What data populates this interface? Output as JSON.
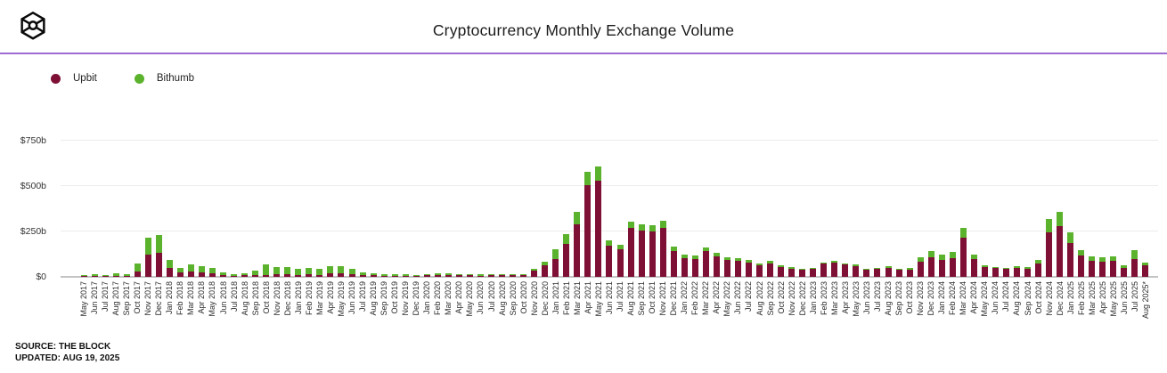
{
  "header": {
    "title": "Cryptocurrency Monthly Exchange Volume",
    "accent_line_color": "#9e6bd0",
    "logo": "the-block-cube-logo"
  },
  "legend": {
    "items": [
      {
        "label": "Upbit",
        "color": "#7e0f35"
      },
      {
        "label": "Bithumb",
        "color": "#5bb22d"
      }
    ]
  },
  "footer": {
    "source": "SOURCE: THE BLOCK",
    "updated": "UPDATED: AUG 19, 2025"
  },
  "chart_data": {
    "type": "bar",
    "stacked": true,
    "title": "Cryptocurrency Monthly Exchange Volume",
    "unit": "USD billions",
    "grid": "horizontal",
    "legend_position": "top-left",
    "ylim": [
      0,
      838
    ],
    "y_ticks": [
      {
        "label": "$0",
        "value": 0
      },
      {
        "label": "$250b",
        "value": 250
      },
      {
        "label": "$500b",
        "value": 500
      },
      {
        "label": "$750b",
        "value": 750
      }
    ],
    "categories": [
      "May 2017",
      "Jun 2017",
      "Jul 2017",
      "Aug 2017",
      "Sep 2017",
      "Oct 2017",
      "Nov 2017",
      "Dec 2017",
      "Jan 2018",
      "Feb 2018",
      "Mar 2018",
      "Apr 2018",
      "May 2018",
      "Jun 2018",
      "Jul 2018",
      "Aug 2018",
      "Sep 2018",
      "Oct 2018",
      "Nov 2018",
      "Dec 2018",
      "Jan 2019",
      "Feb 2019",
      "Mar 2019",
      "Apr 2019",
      "May 2019",
      "Jun 2019",
      "Jul 2019",
      "Aug 2019",
      "Sep 2019",
      "Oct 2019",
      "Nov 2019",
      "Dec 2019",
      "Jan 2020",
      "Feb 2020",
      "Mar 2020",
      "Apr 2020",
      "May 2020",
      "Jun 2020",
      "Jul 2020",
      "Aug 2020",
      "Sep 2020",
      "Oct 2020",
      "Nov 2020",
      "Dec 2020",
      "Jan 2021",
      "Feb 2021",
      "Mar 2021",
      "Apr 2021",
      "May 2021",
      "Jun 2021",
      "Jul 2021",
      "Aug 2021",
      "Sep 2021",
      "Oct 2021",
      "Nov 2021",
      "Dec 2021",
      "Jan 2022",
      "Feb 2022",
      "Mar 2022",
      "Apr 2022",
      "May 2022",
      "Jun 2022",
      "Jul 2022",
      "Aug 2022",
      "Sep 2022",
      "Oct 2022",
      "Nov 2022",
      "Dec 2022",
      "Jan 2023",
      "Feb 2023",
      "Mar 2023",
      "Apr 2023",
      "May 2023",
      "Jun 2023",
      "Jul 2023",
      "Aug 2023",
      "Sep 2023",
      "Oct 2023",
      "Nov 2023",
      "Dec 2023",
      "Jan 2024",
      "Feb 2024",
      "Mar 2024",
      "Apr 2024",
      "May 2024",
      "Jun 2024",
      "Jul 2024",
      "Aug 2024",
      "Sep 2024",
      "Oct 2024",
      "Nov 2024",
      "Dec 2024",
      "Jan 2025",
      "Feb 2025",
      "Mar 2025",
      "Apr 2025",
      "May 2025",
      "Jun 2025",
      "Jul 2025",
      "Aug 2025*"
    ],
    "series": [
      {
        "name": "Upbit",
        "color": "#7e0f35",
        "values": [
          1,
          2,
          2,
          3,
          3,
          30,
          125,
          130,
          48,
          24,
          30,
          25,
          20,
          10,
          6,
          8,
          9,
          12,
          15,
          17,
          12,
          15,
          12,
          18,
          22,
          15,
          10,
          8,
          5,
          5,
          5,
          5,
          8,
          10,
          10,
          8,
          8,
          7,
          9,
          10,
          8,
          10,
          32,
          62,
          100,
          180,
          290,
          505,
          528,
          170,
          150,
          270,
          255,
          250,
          270,
          140,
          105,
          100,
          140,
          115,
          95,
          90,
          80,
          65,
          75,
          55,
          45,
          38,
          44,
          72,
          78,
          67,
          60,
          37,
          44,
          51,
          37,
          41,
          82,
          108,
          95,
          105,
          215,
          100,
          52,
          48,
          42,
          50,
          46,
          75,
          245,
          280,
          185,
          120,
          90,
          85,
          90,
          50,
          100,
          62
        ]
      },
      {
        "name": "Bithumb",
        "color": "#5bb22d",
        "values": [
          4,
          9,
          6,
          18,
          12,
          45,
          90,
          102,
          44,
          26,
          37,
          33,
          27,
          15,
          9,
          13,
          24,
          58,
          40,
          38,
          30,
          35,
          30,
          40,
          36,
          27,
          15,
          12,
          8,
          8,
          8,
          7,
          9,
          10,
          10,
          7,
          7,
          6,
          8,
          7,
          5,
          5,
          13,
          23,
          50,
          55,
          70,
          75,
          80,
          30,
          25,
          35,
          35,
          35,
          40,
          25,
          20,
          18,
          20,
          18,
          13,
          13,
          12,
          10,
          12,
          8,
          8,
          6,
          6,
          8,
          9,
          8,
          7,
          5,
          6,
          7,
          5,
          6,
          26,
          34,
          30,
          30,
          55,
          25,
          10,
          8,
          8,
          8,
          8,
          20,
          75,
          78,
          62,
          27,
          23,
          23,
          23,
          13,
          45,
          18
        ]
      }
    ]
  }
}
